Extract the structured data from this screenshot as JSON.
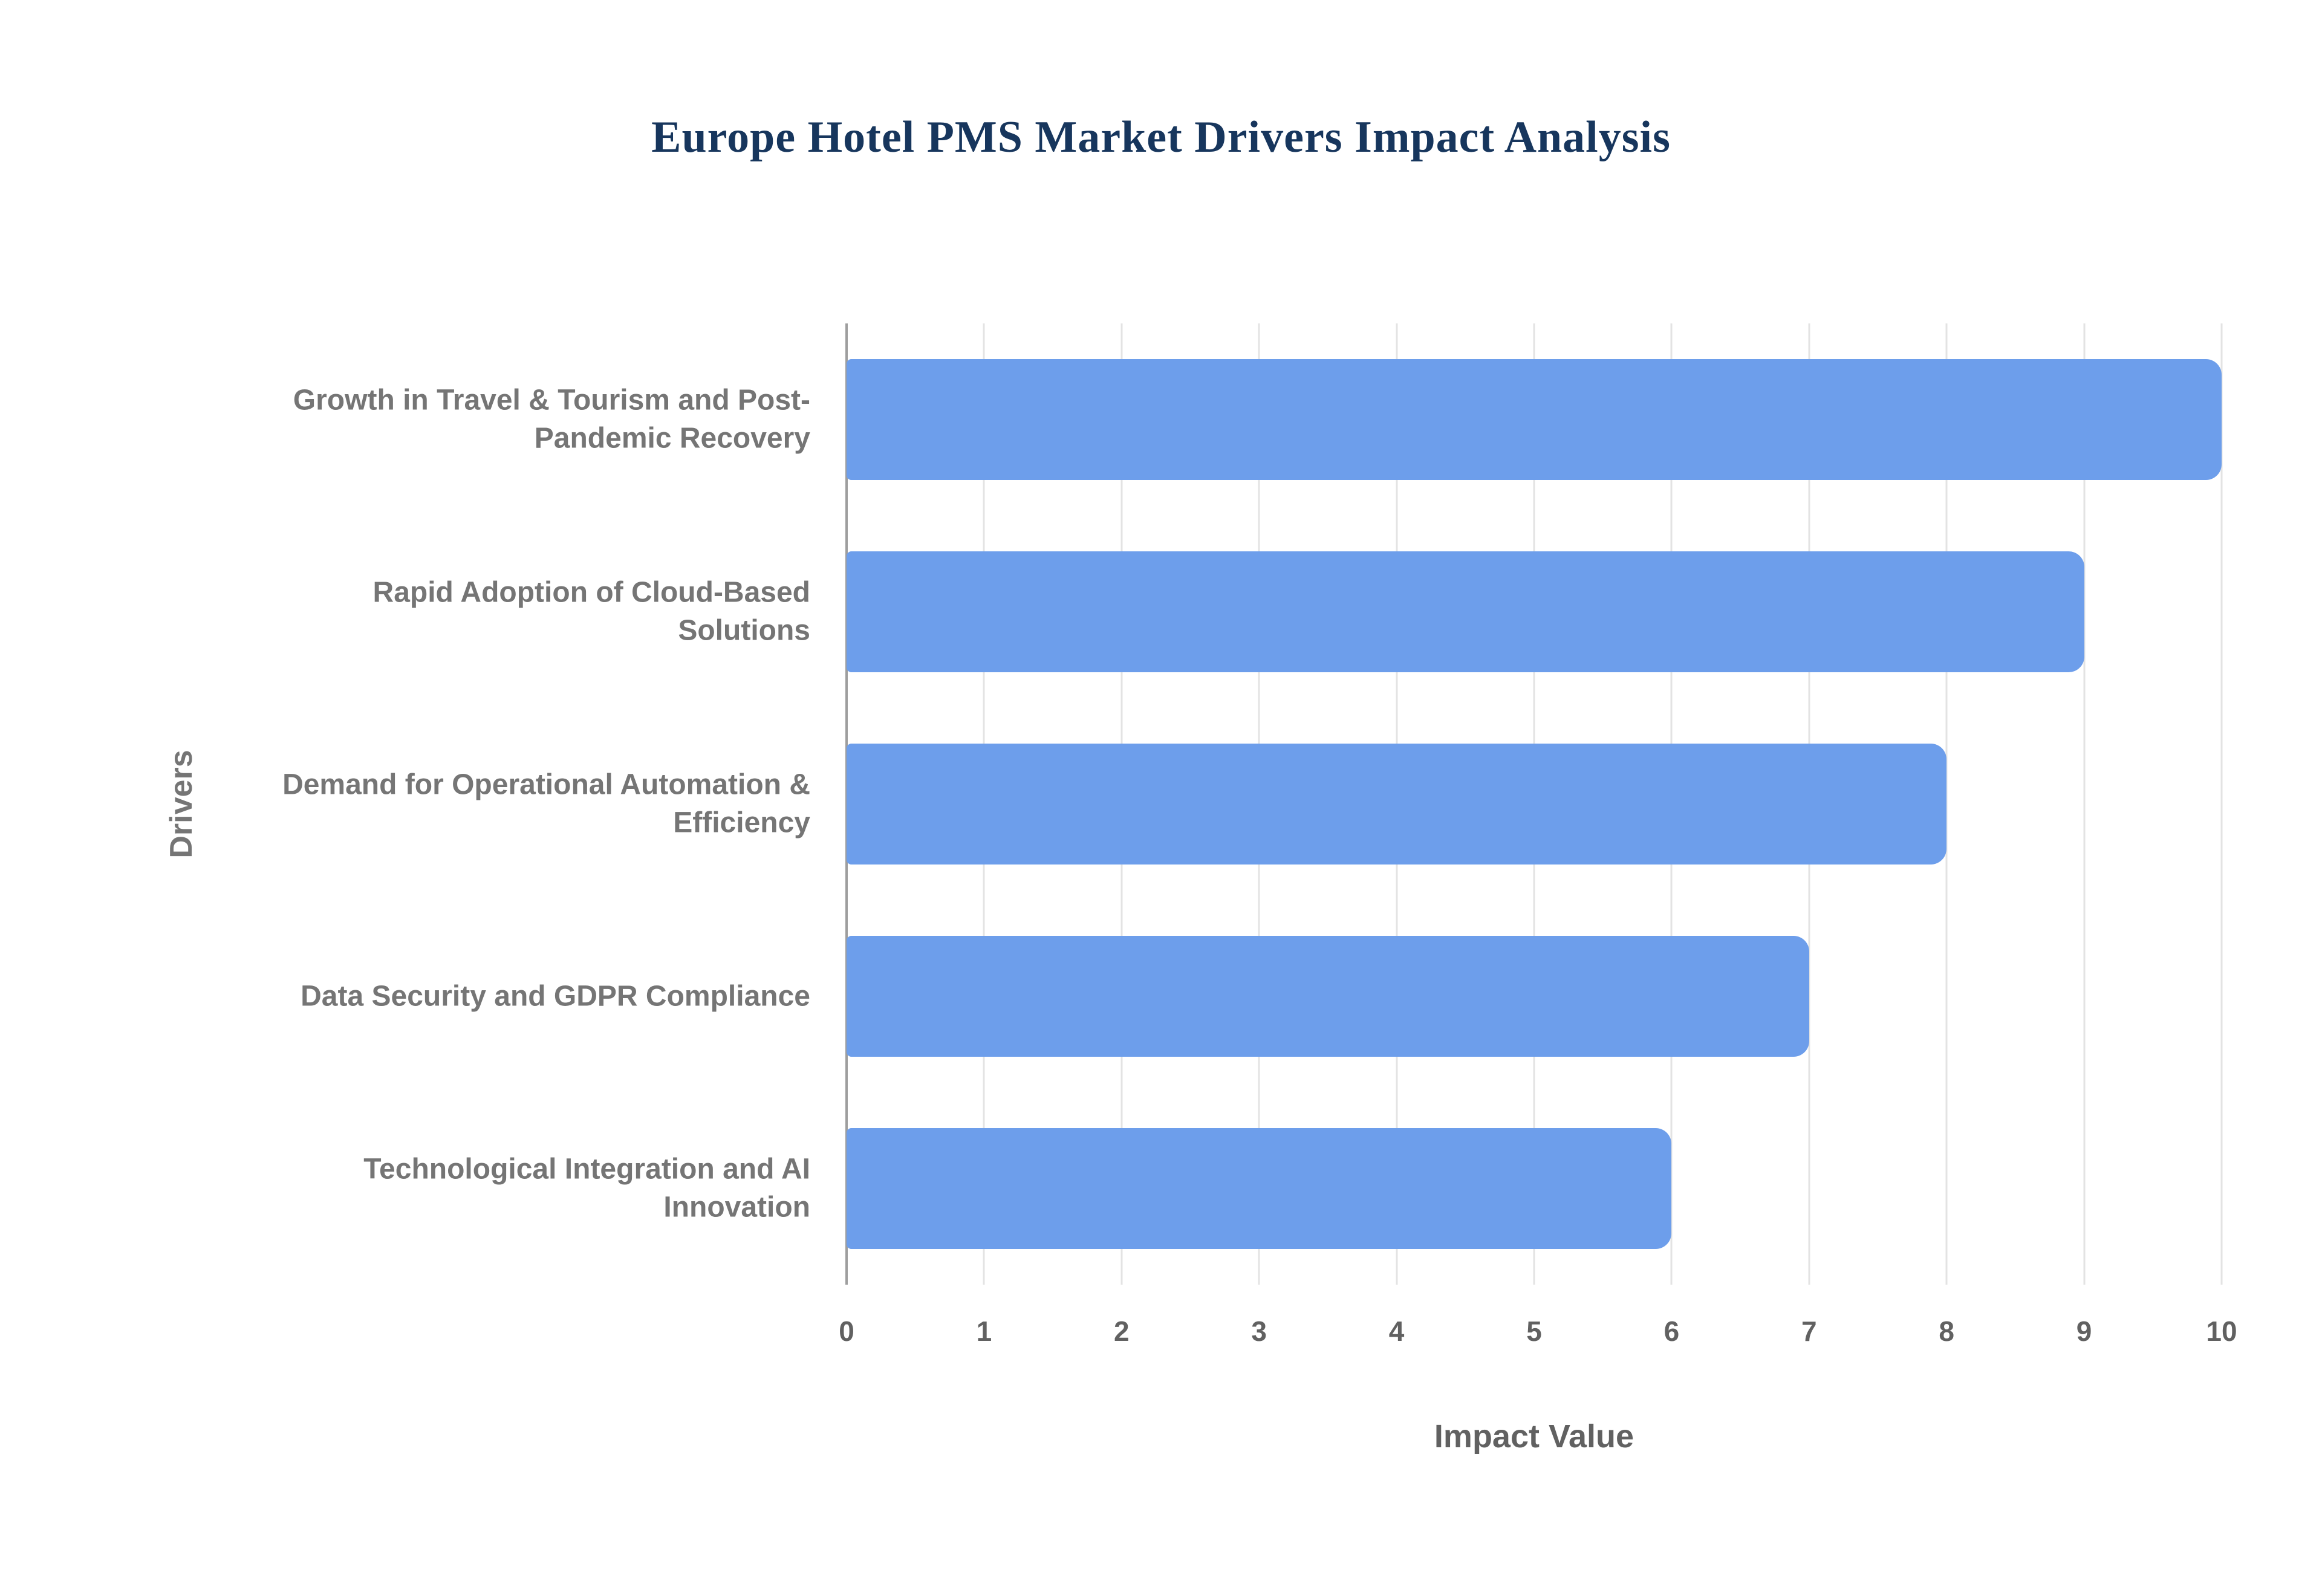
{
  "chart_data": {
    "type": "bar",
    "orientation": "horizontal",
    "title": "Europe Hotel PMS Market Drivers Impact Analysis",
    "categories": [
      "Growth in Travel & Tourism and Post-Pandemic Recovery",
      "Rapid Adoption of Cloud-Based Solutions",
      "Demand for Operational Automation & Efficiency",
      "Data Security and GDPR Compliance",
      "Technological Integration and AI Innovation"
    ],
    "values": [
      10,
      9,
      8,
      7,
      6
    ],
    "xlabel": "Impact Value",
    "ylabel": "Drivers",
    "xlim": [
      0,
      10
    ],
    "xticks": [
      0,
      1,
      2,
      3,
      4,
      5,
      6,
      7,
      8,
      9,
      10
    ],
    "grid": "vertical-only",
    "legend": "none",
    "bar_color": "#6d9eeb",
    "title_color": "#17365d",
    "axis_text_color": "#757575",
    "tick_text_color": "#616161",
    "gridline_color": "#e3e3e3",
    "axis_line_color": "#9e9e9e",
    "background_color": "#ffffff"
  }
}
